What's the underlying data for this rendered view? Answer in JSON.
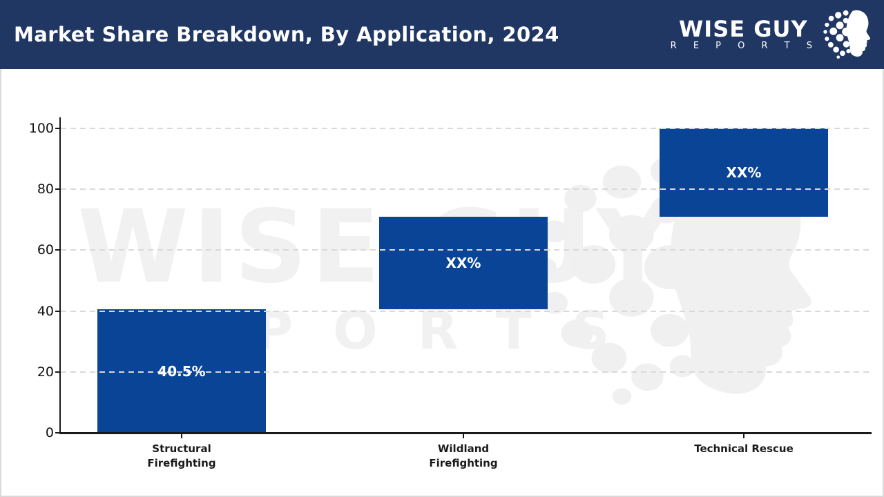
{
  "header": {
    "title": "Market Share Breakdown, By Application, 2024",
    "bg_color": "#203663",
    "logo": {
      "line1": "WISE GUY",
      "line2": "R E P O R T S"
    }
  },
  "watermark": {
    "line1": "WISE GUY",
    "line2": "REPORTS"
  },
  "chart_data": {
    "type": "bar",
    "variant": "floating-segment-waterfall",
    "title": "Market Share Breakdown, By Application, 2024",
    "categories": [
      "Structural Firefighting",
      "Wildland Firefighting",
      "Technical Rescue"
    ],
    "category_label_lines": [
      [
        "Structural",
        "Firefighting"
      ],
      [
        "Wildland",
        "Firefighting"
      ],
      [
        "Technical Rescue"
      ]
    ],
    "segments": [
      {
        "category": "Structural Firefighting",
        "base": 0,
        "top": 40.5,
        "label": "40.5%"
      },
      {
        "category": "Wildland Firefighting",
        "base": 40.5,
        "top": 71,
        "label": "XX%"
      },
      {
        "category": "Technical Rescue",
        "base": 71,
        "top": 100,
        "label": "XX%"
      }
    ],
    "bar_color": "#0a4496",
    "bar_label_color": "#ffffff",
    "yticks": [
      0,
      20,
      40,
      60,
      80,
      100
    ],
    "ylim": [
      0,
      103.5
    ],
    "xlabel": "",
    "ylabel": "",
    "grid": "horizontal dashed gridlines drawn above bars",
    "gridline_color": "#d9d9d9",
    "axis_color": "#1a1a1a",
    "legend": "none"
  }
}
